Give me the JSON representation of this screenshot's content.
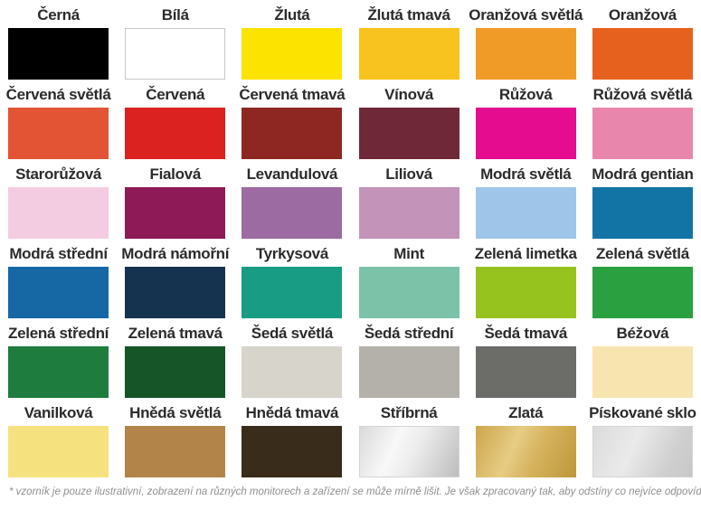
{
  "chart_data": {
    "type": "table",
    "grid": {
      "columns": 6,
      "rows": 6
    },
    "swatches": [
      {
        "label": "Černá",
        "bg": "#000000"
      },
      {
        "label": "Bílá",
        "bg": "#ffffff",
        "border": "#c8c8c8"
      },
      {
        "label": "Žlutá",
        "bg": "#fce300"
      },
      {
        "label": "Žlutá tmavá",
        "bg": "#f8c31e"
      },
      {
        "label": "Oranžová světlá",
        "bg": "#f09b27"
      },
      {
        "label": "Oranžová",
        "bg": "#e7611e"
      },
      {
        "label": "Červená světlá",
        "bg": "#e25433"
      },
      {
        "label": "Červená",
        "bg": "#dc2221"
      },
      {
        "label": "Červená tmavá",
        "bg": "#8e2722"
      },
      {
        "label": "Vínová",
        "bg": "#6f2837"
      },
      {
        "label": "Růžová",
        "bg": "#e60c8f"
      },
      {
        "label": "Růžová světlá",
        "bg": "#e986ac"
      },
      {
        "label": "Starorůžová",
        "bg": "#f4cce1"
      },
      {
        "label": "Fialová",
        "bg": "#8e1a57"
      },
      {
        "label": "Levandulová",
        "bg": "#9c6ba1"
      },
      {
        "label": "Liliová",
        "bg": "#c393b9"
      },
      {
        "label": "Modrá světlá",
        "bg": "#9fc6e9"
      },
      {
        "label": "Modrá gentian",
        "bg": "#1274a5"
      },
      {
        "label": "Modrá střední",
        "bg": "#1668a4"
      },
      {
        "label": "Modrá námořní",
        "bg": "#15334f"
      },
      {
        "label": "Tyrkysová",
        "bg": "#189c83"
      },
      {
        "label": "Mint",
        "bg": "#7bc2a9"
      },
      {
        "label": "Zelená limetka",
        "bg": "#97c31f"
      },
      {
        "label": "Zelená světlá",
        "bg": "#2aa040"
      },
      {
        "label": "Zelená střední",
        "bg": "#1e7c3e"
      },
      {
        "label": "Zelená tmavá",
        "bg": "#165527"
      },
      {
        "label": "Šedá světlá",
        "bg": "#d7d4cc"
      },
      {
        "label": "Šedá střední",
        "bg": "#b3b1a9"
      },
      {
        "label": "Šedá tmavá",
        "bg": "#6c6c69"
      },
      {
        "label": "Béžová",
        "bg": "#f7e4ae"
      },
      {
        "label": "Vanilková",
        "bg": "#f5e27e"
      },
      {
        "label": "Hnědá světlá",
        "bg": "#b28449"
      },
      {
        "label": "Hnědá tmavá",
        "bg": "#3a2c1b"
      },
      {
        "label": "Stříbrná",
        "bg": "linear-gradient(115deg, #dadada 0%, #f8f8f8 35%, #ececec 55%, #bdbdbd 100%)",
        "border": "#d4d4d4"
      },
      {
        "label": "Zlatá",
        "bg": "linear-gradient(115deg, #cda64a 0%, #e6cc84 38%, #d6b35e 60%, #bd9739 100%)"
      },
      {
        "label": "Pískované sklo",
        "bg": "linear-gradient(115deg, #dbdbdb 0%, #eaeaea 40%, #d0d0d0 75%, #c7c7c7 100%)",
        "border": "#d4d4d4"
      }
    ]
  },
  "footnote": {
    "text": "* vzorník je pouze ilustrativní, zobrazení na různých monitorech a zařízení se může mírně lišit. Je však zpracovaný tak, aby odstíny co nejvíce odpovídaly."
  }
}
